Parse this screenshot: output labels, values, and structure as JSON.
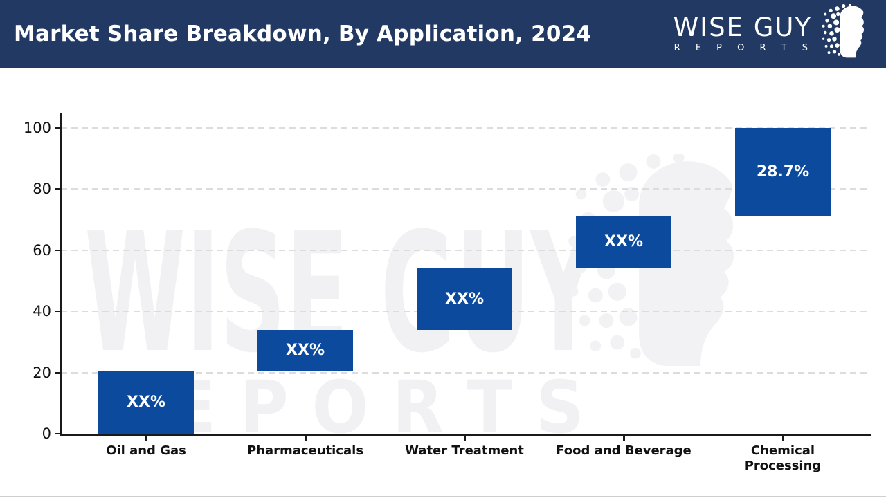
{
  "header": {
    "title": "Market Share Breakdown, By Application, 2024",
    "logo": {
      "line1": "WISE GUY",
      "line2": "R E P O R T S"
    }
  },
  "watermark": {
    "line1": "WISE GUY",
    "line2": "R E P O R T S"
  },
  "colors": {
    "header_bg": "#223963",
    "bar": "#0c4a9e",
    "bar_label": "#ffffff",
    "grid": "#dcdcdc",
    "axis": "#1a1a1a",
    "watermark": "#f2f2f4"
  },
  "chart_data": {
    "type": "bar",
    "subtype": "waterfall",
    "title": "Market Share Breakdown, By Application, 2024",
    "categories": [
      "Oil and Gas",
      "Pharmaceuticals",
      "Water Treatment",
      "Food and Beverage",
      "Chemical Processing"
    ],
    "category_label_lines": [
      [
        "Oil and Gas"
      ],
      [
        "Pharmaceuticals"
      ],
      [
        "Water Treatment"
      ],
      [
        "Food and Beverage"
      ],
      [
        "Chemical",
        "Processing"
      ]
    ],
    "segments": [
      {
        "category": "Oil and Gas",
        "start": 0,
        "end": 20.5,
        "value": 20.5,
        "label": "XX%"
      },
      {
        "category": "Pharmaceuticals",
        "start": 20.5,
        "end": 34.0,
        "value": 13.5,
        "label": "XX%"
      },
      {
        "category": "Water Treatment",
        "start": 34.0,
        "end": 54.2,
        "value": 20.2,
        "label": "XX%"
      },
      {
        "category": "Food and Beverage",
        "start": 54.2,
        "end": 71.3,
        "value": 17.1,
        "label": "XX%"
      },
      {
        "category": "Chemical Processing",
        "start": 71.3,
        "end": 100,
        "value": 28.7,
        "label": "28.7%"
      }
    ],
    "yticks": [
      0,
      20,
      40,
      60,
      80,
      100
    ],
    "ylim": [
      0,
      105
    ],
    "xlabel": "",
    "ylabel": "",
    "grid": "horizontal-dashed",
    "legend": "none",
    "units": "%"
  }
}
